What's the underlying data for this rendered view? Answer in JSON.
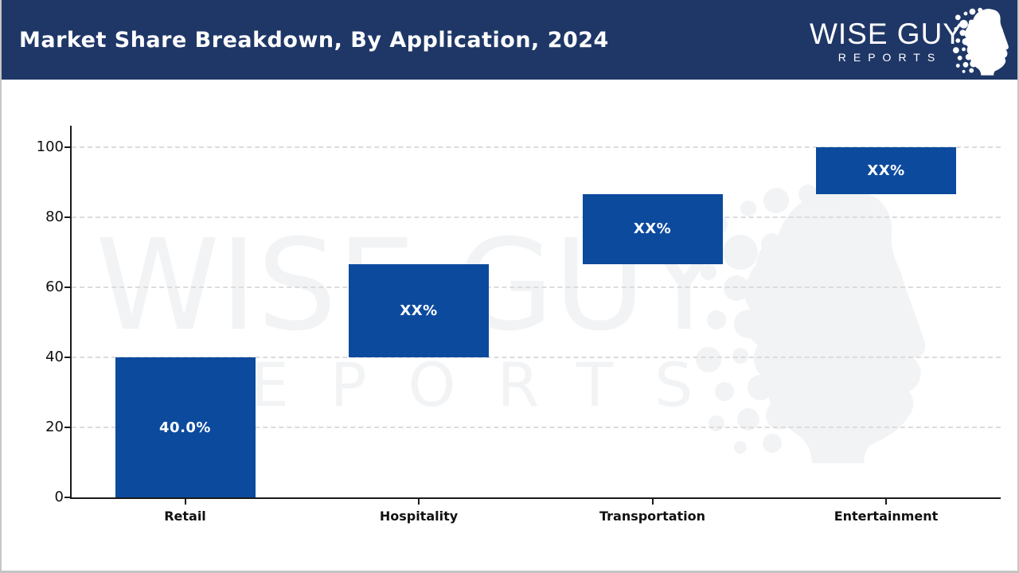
{
  "header": {
    "title": "Market Share Breakdown, By Application, 2024",
    "logo": {
      "line1": "WISE GUY",
      "line2": "REPORTS"
    },
    "background_color": "#1f3767"
  },
  "watermark": {
    "line1": "WISE GUY",
    "line2": "REPORTS"
  },
  "chart_data": {
    "type": "bar",
    "subtype": "waterfall",
    "title": "Market Share Breakdown, By Application, 2024",
    "xlabel": "",
    "ylabel": "",
    "ylim": [
      0,
      100
    ],
    "y_ticks": [
      0,
      20,
      40,
      60,
      80,
      100
    ],
    "grid": "horizontal-dashed",
    "legend": "none",
    "bar_color": "#0c4a9e",
    "bar_label_color": "#ffffff",
    "categories": [
      "Retail",
      "Hospitality",
      "Transportation",
      "Entertainment"
    ],
    "segments": [
      {
        "category": "Retail",
        "start": 0,
        "end": 40,
        "label": "40.0%"
      },
      {
        "category": "Hospitality",
        "start": 40,
        "end": 66.7,
        "label": "XX%"
      },
      {
        "category": "Transportation",
        "start": 66.7,
        "end": 86.7,
        "label": "XX%"
      },
      {
        "category": "Entertainment",
        "start": 86.7,
        "end": 100,
        "label": "XX%"
      }
    ]
  }
}
